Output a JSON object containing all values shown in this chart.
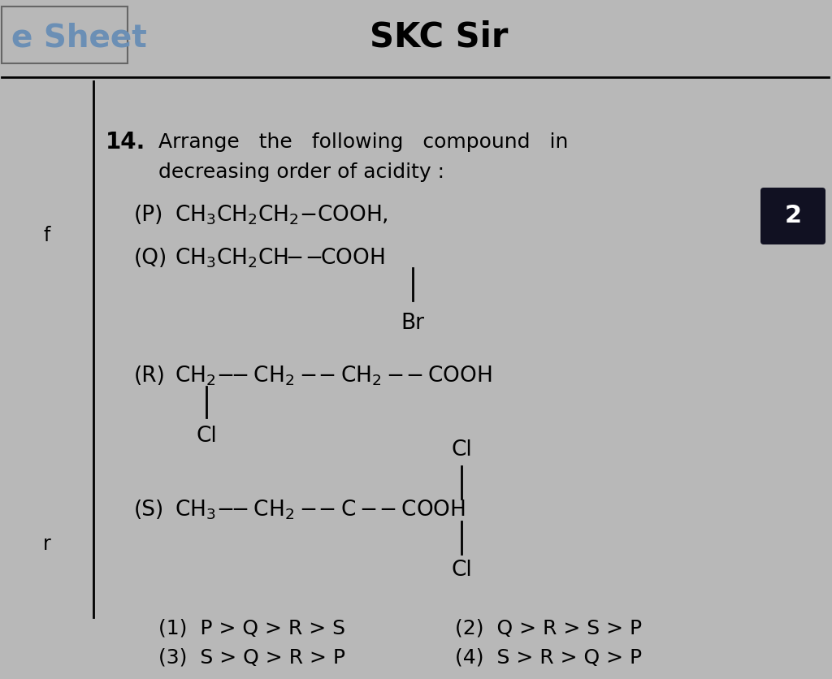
{
  "background_color": "#b8b8b8",
  "title_text": "SKC Sir",
  "sheet_label": "e Sheet",
  "badge_text": "2",
  "badge_color": "#111122",
  "left_label": "f",
  "right_label": "r",
  "q_num": "14.",
  "q_line1": "Arrange   the   following   compound   in",
  "q_line2": "decreasing order of acidity :",
  "P_label": "(P)",
  "Q_label": "(Q)",
  "R_label": "(R)",
  "S_label": "(S)",
  "options": [
    "(1)  P > Q > R > S",
    "(2)  Q > R > S > P",
    "(3)  S > Q > R > P",
    "(4)  S > R > Q > P"
  ],
  "fig_w": 10.24,
  "fig_h": 8.36,
  "dpi": 100
}
